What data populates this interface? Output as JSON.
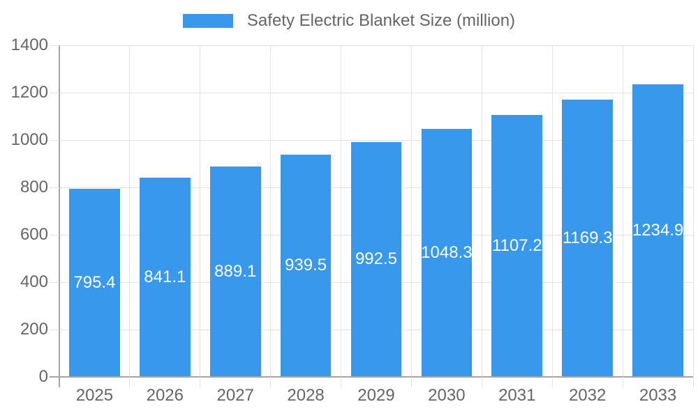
{
  "legend": {
    "position": "top-center"
  },
  "colors": {
    "bar": "#3899EC",
    "axis_text": "#666666",
    "grid_line": "#e3e3e3",
    "axis_line": "#a5a5a5",
    "value_label": "#ffffff",
    "background": "#ffffff"
  },
  "chart_data": {
    "type": "bar",
    "categories": [
      "2025",
      "2026",
      "2027",
      "2028",
      "2029",
      "2030",
      "2031",
      "2032",
      "2033"
    ],
    "series": [
      {
        "name": "Safety Electric Blanket Size (million)",
        "values": [
          795.4,
          841.1,
          889.1,
          939.5,
          992.5,
          1048.3,
          1107.2,
          1169.3,
          1234.9
        ],
        "color": "#3899EC"
      }
    ],
    "title": "",
    "xlabel": "",
    "ylabel": "",
    "ylim": [
      0,
      1400
    ],
    "yticks": [
      0,
      200,
      400,
      600,
      800,
      1000,
      1200,
      1400
    ],
    "grid": true,
    "legend_position": "top-center",
    "value_labels": {
      "position": "center-inside",
      "color": "#ffffff"
    }
  }
}
